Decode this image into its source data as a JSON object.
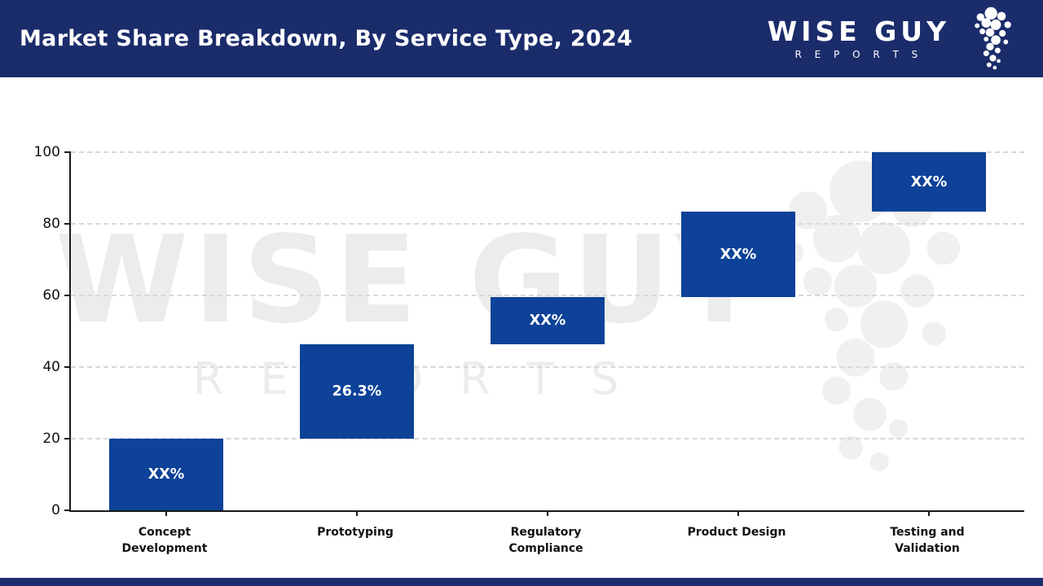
{
  "header": {
    "title": "Market Share Breakdown, By Service Type, 2024",
    "brand": {
      "name": "WISE GUY",
      "subtitle": "R E P O R T S"
    }
  },
  "watermark": {
    "name": "WISE GUY",
    "subtitle": "R E P O R T S"
  },
  "colors": {
    "header_bg": "#1b2c6b",
    "bar": "#0d4298",
    "bar_label": "#ffffff",
    "grid": "#d8d8d8",
    "axis": "#1a1a1a",
    "watermark": "#ececec"
  },
  "chart_data": {
    "type": "bar",
    "subtype": "waterfall",
    "title": "Market Share Breakdown, By Service Type, 2024",
    "categories": [
      "Concept\nDevelopment",
      "Prototyping",
      "Regulatory\nCompliance",
      "Product Design",
      "Testing and\nValidation"
    ],
    "segments": [
      {
        "category": "Concept Development",
        "start": 0,
        "end": 20,
        "label": "XX%"
      },
      {
        "category": "Prototyping",
        "start": 20,
        "end": 46.3,
        "label": "26.3%"
      },
      {
        "category": "Regulatory Compliance",
        "start": 46.3,
        "end": 59.5,
        "label": "XX%"
      },
      {
        "category": "Product Design",
        "start": 59.5,
        "end": 83.4,
        "label": "XX%"
      },
      {
        "category": "Testing and Validation",
        "start": 83.4,
        "end": 100,
        "label": "XX%"
      }
    ],
    "ylim": [
      0,
      100
    ],
    "yticks": [
      0,
      20,
      40,
      60,
      80,
      100
    ],
    "grid": "horizontal-dashed",
    "legend": "none",
    "xlabel": "",
    "ylabel": ""
  }
}
